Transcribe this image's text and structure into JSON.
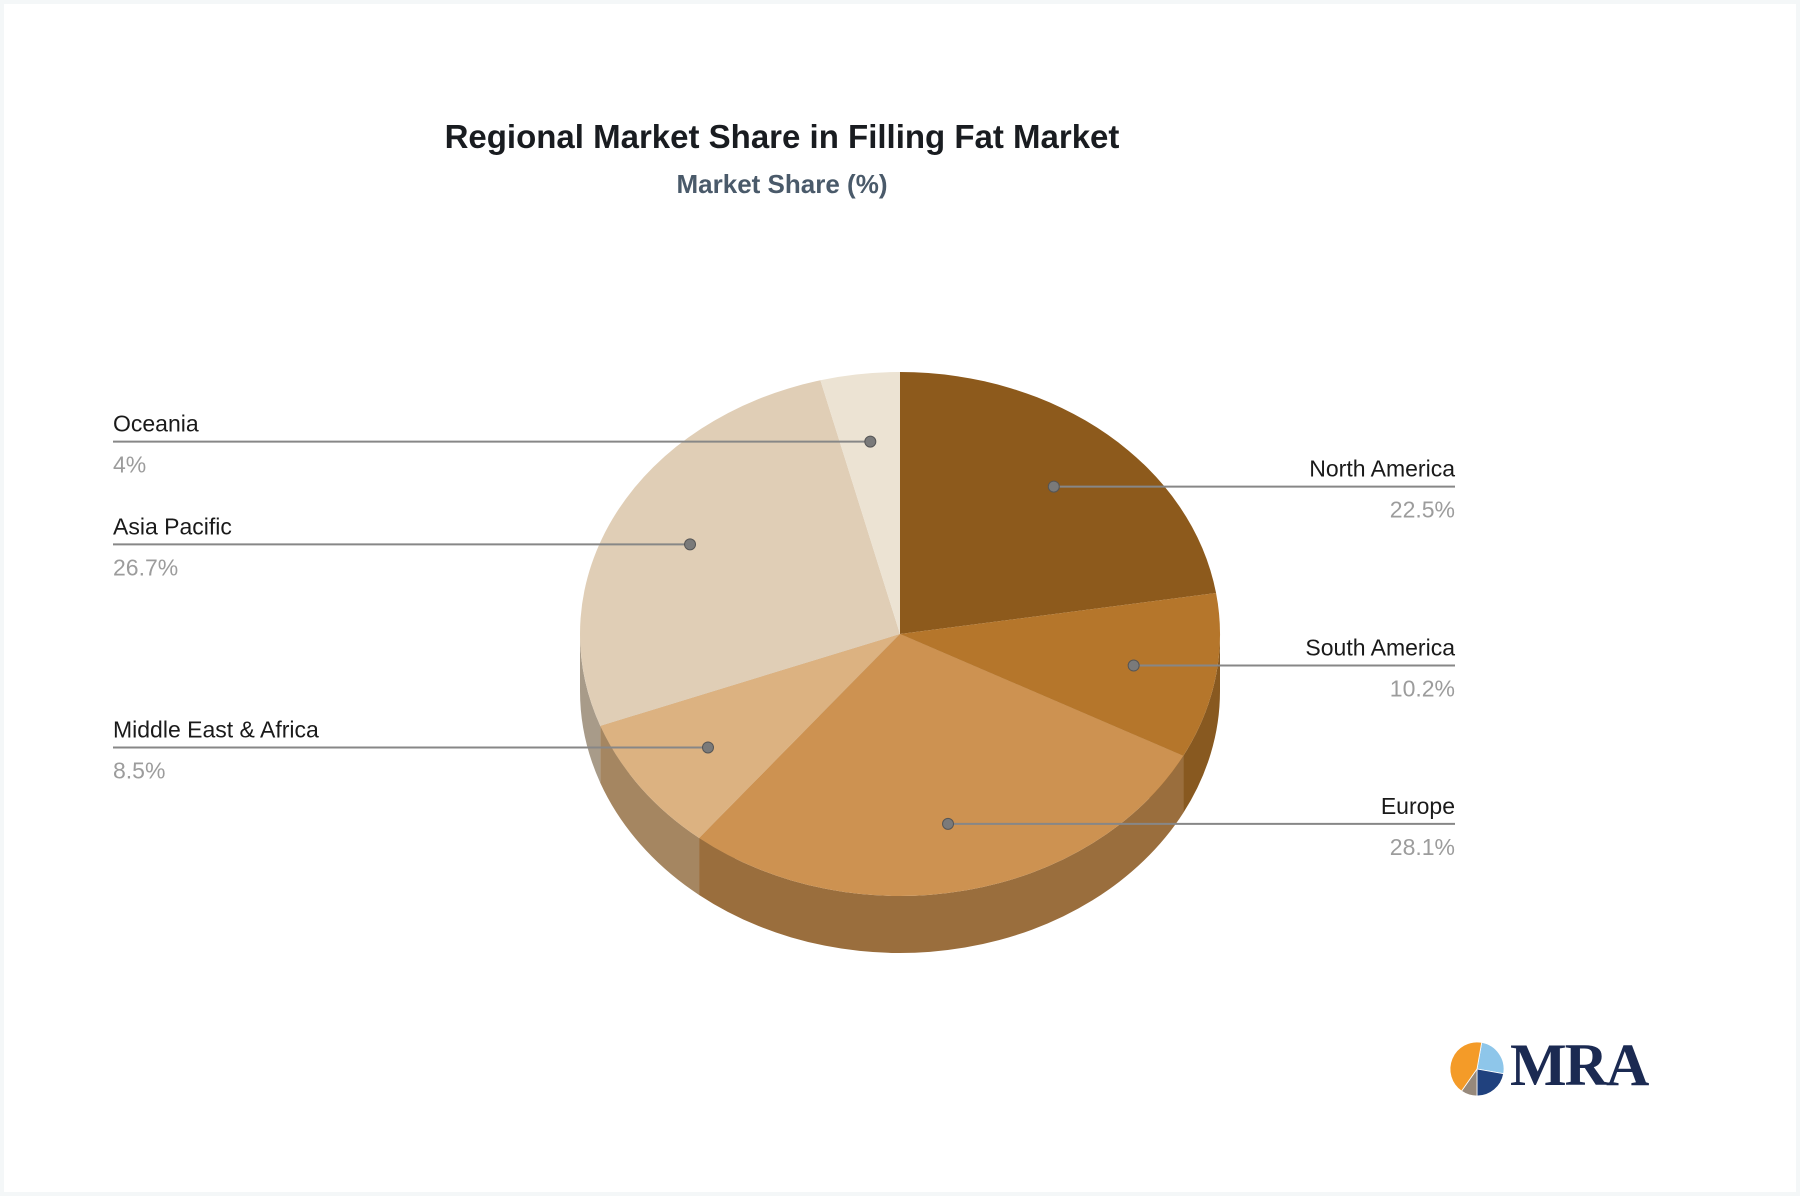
{
  "chart_data": {
    "type": "pie",
    "title": "Regional Market Share in Filling Fat Market",
    "subtitle": "Market Share (%)",
    "unit": "%",
    "effect_3d": true,
    "direction": "clockwise",
    "start_angle_deg": 0,
    "legend": "none (direct labels with leader lines)",
    "label_color": "#1a1a1a",
    "value_color": "#9c9c9c",
    "leader_line_color": "#878787",
    "leader_dot_color": "#7a7a7a",
    "slices": [
      {
        "label": "North America",
        "value": 22.5,
        "display": "22.5%",
        "color": "#8d5a1c",
        "label_side": "right"
      },
      {
        "label": "South America",
        "value": 10.2,
        "display": "10.2%",
        "color": "#b5762b",
        "label_side": "right"
      },
      {
        "label": "Europe",
        "value": 28.1,
        "display": "28.1%",
        "color": "#cd9251",
        "label_side": "right"
      },
      {
        "label": "Middle East & Africa",
        "value": 8.5,
        "display": "8.5%",
        "color": "#dcb281",
        "label_side": "left"
      },
      {
        "label": "Asia Pacific",
        "value": 26.7,
        "display": "26.7%",
        "color": "#e0ceb6",
        "label_side": "left"
      },
      {
        "label": "Oceania",
        "value": 4,
        "display": "4%",
        "color": "#ece3d3",
        "label_side": "left"
      }
    ]
  },
  "logo": {
    "text": "MRA",
    "text_color": "#1b2a52",
    "icon_slices": [
      {
        "name": "light-blue",
        "from": 10,
        "to": 100,
        "color": "#8ec6ea"
      },
      {
        "name": "dark-blue",
        "from": 100,
        "to": 180,
        "color": "#20417e"
      },
      {
        "name": "gray",
        "from": 180,
        "to": 215,
        "color": "#97897b"
      },
      {
        "name": "orange",
        "from": 215,
        "to": 370,
        "color": "#f49b28"
      }
    ]
  }
}
